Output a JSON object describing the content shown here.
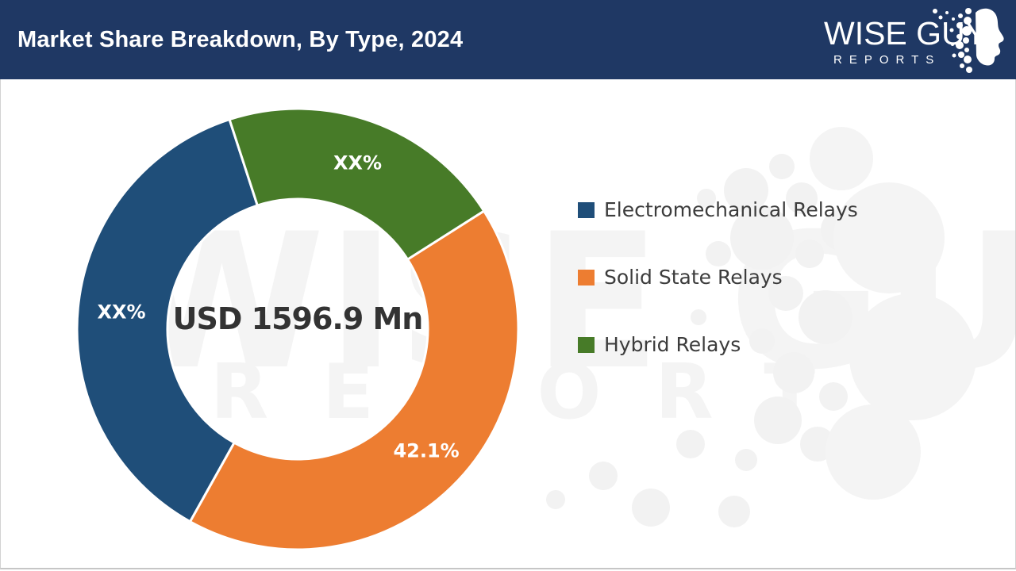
{
  "header": {
    "title": "Market Share Breakdown, By Type, 2024",
    "bg_color": "#1f3864",
    "logo": {
      "line1": "WISE GUY",
      "line2": "R E P O R T S"
    }
  },
  "chart_data": {
    "type": "pie",
    "subtype": "donut",
    "title": "Market Share Breakdown, By Type, 2024",
    "center_label": "USD 1596.9 Mn",
    "start_angle_deg": 108,
    "direction": "counterclockwise",
    "donut_hole_ratio": 0.59,
    "legend_position": "right",
    "series": [
      {
        "name": "Electromechanical Relays",
        "label": "XX%",
        "value_pct": 36.9,
        "color": "#1f4e79"
      },
      {
        "name": "Solid State Relays",
        "label": "42.1%",
        "value_pct": 42.1,
        "color": "#ed7d31"
      },
      {
        "name": "Hybrid Relays",
        "label": "XX%",
        "value_pct": 21.0,
        "color": "#477b28"
      }
    ]
  },
  "watermark": {
    "line1": "WISE GUY",
    "line2": "REPORTS"
  },
  "colors": {
    "header_bg": "#1f3864",
    "blue": "#1f4e79",
    "orange": "#ed7d31",
    "green": "#477b28",
    "text_dark": "#333333",
    "watermark": "#f4f4f4",
    "border": "#c6c6c6"
  }
}
